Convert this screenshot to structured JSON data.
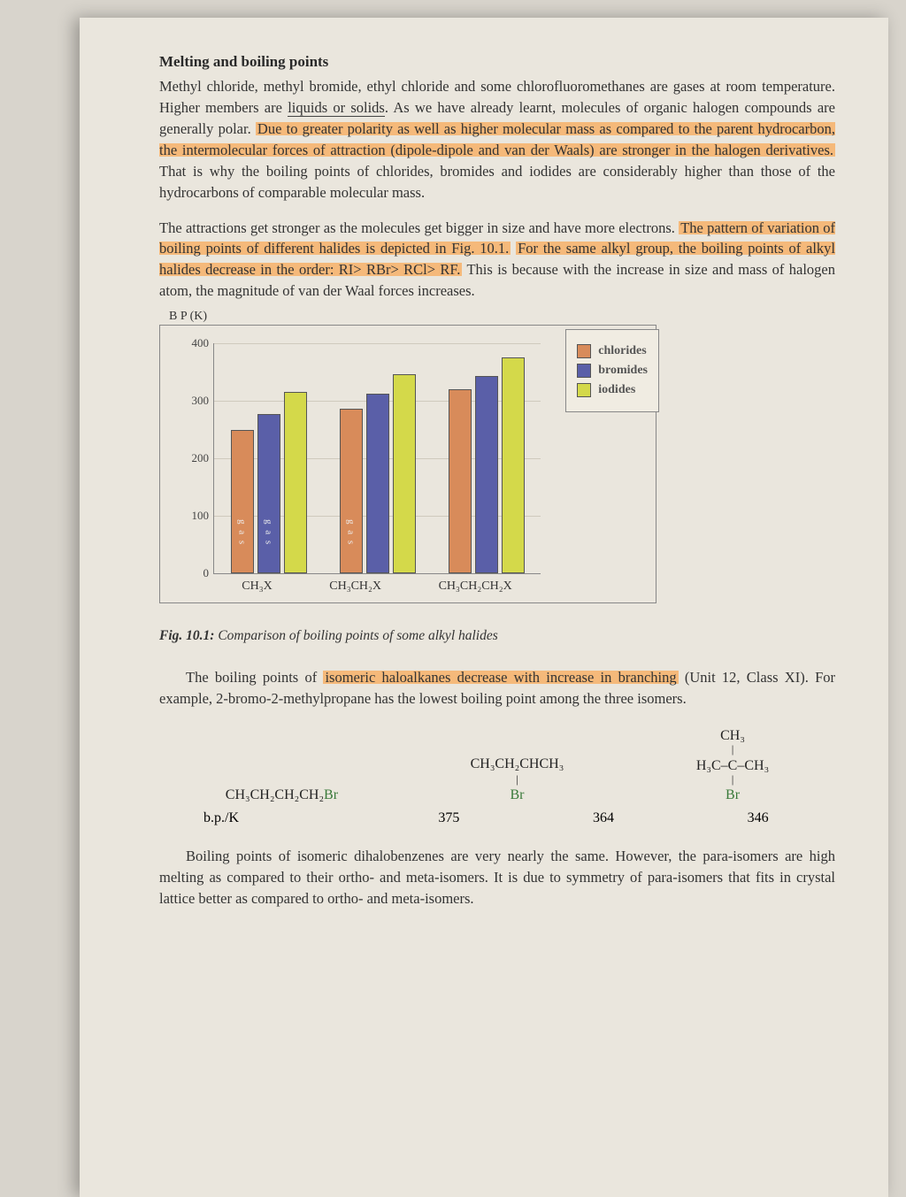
{
  "heading": "Melting and boiling points",
  "para1_a": "Methyl chloride, methyl bromide, ethyl chloride and some chlorofluoromethanes are gases at room temperature. Higher members are ",
  "para1_liquids": "liquids or solids",
  "para1_b": ". As we have already learnt, molecules of organic halogen compounds are generally polar. ",
  "para1_hl1": "Due to greater polarity as well as higher molecular mass as compared to the parent hydrocarbon, the intermolecular forces of attraction (dipole-dipole and van der Waals) are stronger in the halogen derivatives.",
  "para1_c": " That is why the boiling points of chlorides, bromides and iodides are considerably higher than those of the hydrocarbons of comparable molecular mass.",
  "para2_a": "The attractions get stronger as the molecules get bigger in size and have more electrons. ",
  "para2_hl1": "The pattern of variation of boiling points of different halides is depicted in Fig. 10.1.",
  "para2_b": " ",
  "para2_hl2": "For the same alkyl group, the boiling points of alkyl halides decrease in the order: RI> RBr> RCl> RF.",
  "para2_c": " This is because with the increase in size and mass of halogen atom, the magnitude of van der Waal forces increases.",
  "chart": {
    "y_title": "B P (K)",
    "ymax": 400,
    "yticks": [
      0,
      100,
      200,
      300,
      400
    ],
    "colors": {
      "chlorides": "#d88b5a",
      "bromides": "#5a5fa8",
      "iodides": "#d4d94a"
    },
    "groups": [
      {
        "label": "CH₃X",
        "values": {
          "chlorides": 250,
          "bromides": 278,
          "iodides": 316
        }
      },
      {
        "label": "CH₃CH₂X",
        "values": {
          "chlorides": 286,
          "bromides": 312,
          "iodides": 346
        }
      },
      {
        "label": "CH₃CH₂CH₂X",
        "values": {
          "chlorides": 320,
          "bromides": 344,
          "iodides": 376
        }
      }
    ],
    "legend": [
      "chlorides",
      "bromides",
      "iodides"
    ]
  },
  "fig_caption_no": "Fig. 10.1:",
  "fig_caption_text": " Comparison of boiling points of some alkyl halides",
  "para3_a": "The boiling points of ",
  "para3_hl": "isomeric haloalkanes decrease with increase in branching",
  "para3_b": " (Unit 12, Class XI). For example, 2-bromo-2-methylpropane has the lowest boiling point among the three isomers.",
  "isomers": {
    "a": {
      "formula": "CH₃CH₂CH₂CH₂",
      "bp": "375"
    },
    "b": {
      "formula": "CH₃CH₂CHCH₃",
      "bp": "364"
    },
    "c": {
      "top": "CH₃",
      "mid": "H₃C–C–CH₃",
      "bp": "346"
    },
    "br": "Br"
  },
  "bp_label": "b.p./K",
  "para4": "Boiling points of isomeric dihalobenzenes are very nearly the same. However, the para-isomers are high melting as compared to their ortho- and meta-isomers. It is due to symmetry of para-isomers that fits in crystal lattice better as compared to ortho- and meta-isomers."
}
